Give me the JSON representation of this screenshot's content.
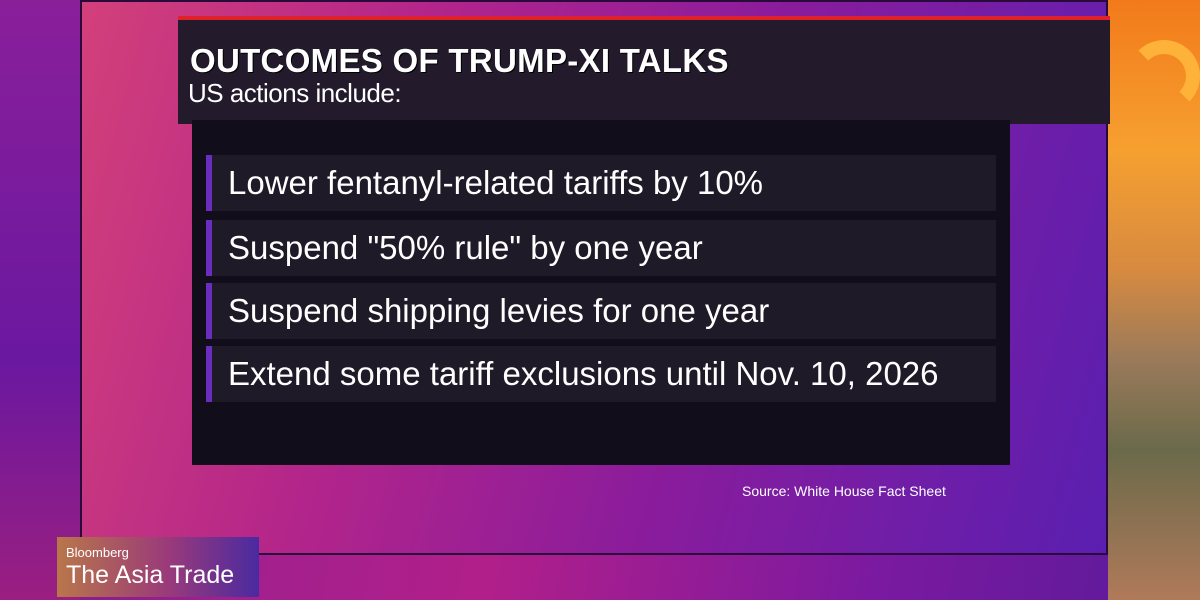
{
  "graphic": {
    "title": "OUTCOMES OF TRUMP-XI TALKS",
    "subtitle": "US actions include:",
    "items": [
      {
        "text": "Lower fentanyl-related tariffs by 10%"
      },
      {
        "text": "Suspend \"50% rule\" by one year"
      },
      {
        "text": "Suspend shipping levies for one year"
      },
      {
        "text": "Extend some tariff exclusions until Nov. 10, 2026"
      }
    ],
    "source": "Source: White House Fact Sheet"
  },
  "lower_third": {
    "brand": "Bloomberg",
    "show": "The Asia Trade"
  },
  "colors": {
    "accent_red": "#e0202a",
    "bullet_bar": "#6a2dc0",
    "panel": "#120d1a"
  }
}
